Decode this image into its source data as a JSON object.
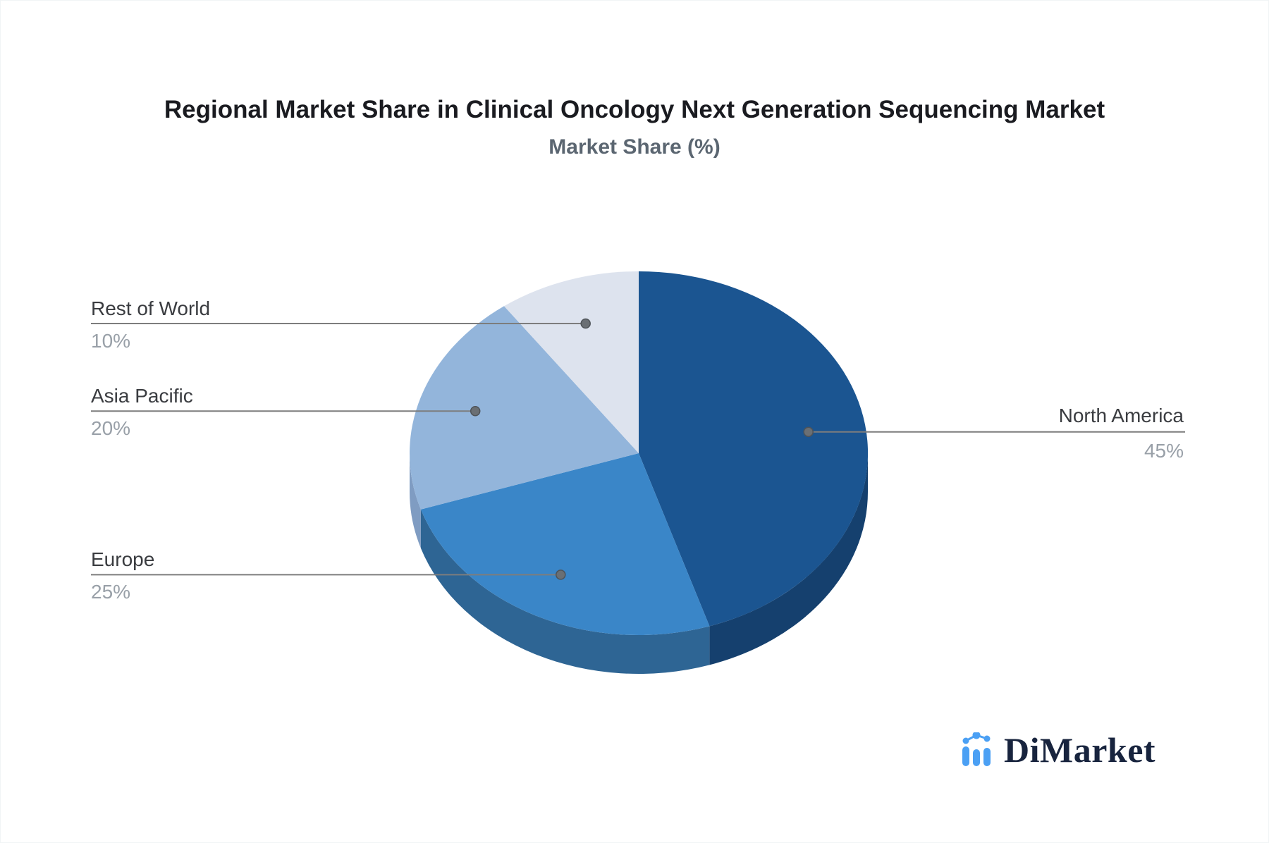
{
  "header": {
    "title": "Regional Market Share in Clinical Oncology Next Generation Sequencing Market",
    "subtitle": "Market Share (%)"
  },
  "chart_data": {
    "type": "pie",
    "title": "Regional Market Share in Clinical Oncology Next Generation Sequencing Market",
    "subtitle": "Market Share (%)",
    "unit": "%",
    "effect": "3d",
    "direction": "clockwise",
    "start_angle_deg": 0,
    "legend_position": "none",
    "slices": [
      {
        "label": "North America",
        "value": 45,
        "pct_label": "45%",
        "color": "#1B5591",
        "side_color": "#15406E",
        "label_side": "right"
      },
      {
        "label": "Europe",
        "value": 25,
        "pct_label": "25%",
        "color": "#3A86C8",
        "side_color": "#2E6594",
        "label_side": "left"
      },
      {
        "label": "Asia Pacific",
        "value": 20,
        "pct_label": "20%",
        "color": "#93B5DB",
        "side_color": "#7F9CC2",
        "label_side": "left"
      },
      {
        "label": "Rest of World",
        "value": 10,
        "pct_label": "10%",
        "color": "#DDE3EE",
        "side_color": "#C3CDDD",
        "label_side": "left"
      }
    ],
    "leader_line_color": "#7D7D7D",
    "leader_dot_color": "#6A6F74",
    "label_name_color": "#3A3C40",
    "label_pct_color": "#99A0A8"
  },
  "branding": {
    "logo_text": "DiMarket",
    "logo_text_color": "#18243E",
    "logo_icon_color": "#4BA0F4"
  }
}
